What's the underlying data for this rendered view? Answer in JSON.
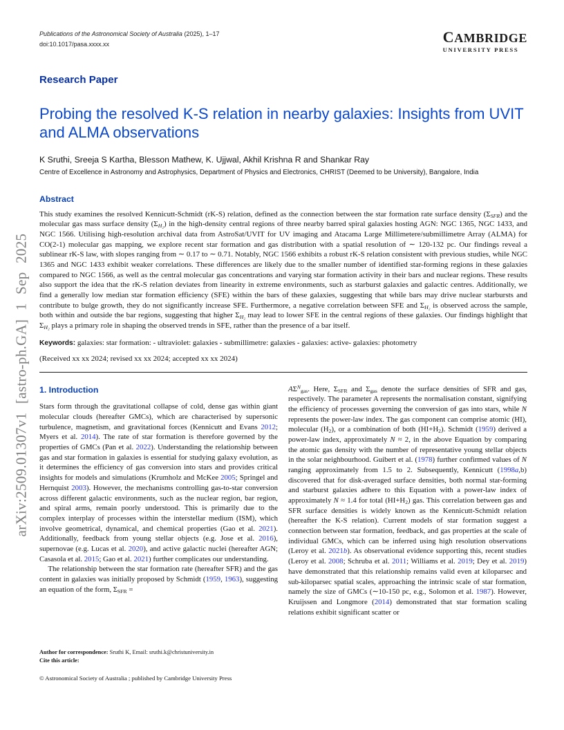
{
  "meta": {
    "journal_title": "Publications of the Astronomical Society of Australia",
    "journal_rest": " (2025), 1–17",
    "doi_line": "doi:10.1017/pasa.xxxx.xx",
    "arxiv_watermark": "arXiv:2509.01307v1 [astro-ph.GA] 1 Sep 2025"
  },
  "publisher": {
    "name": "CAMBRIDGE",
    "subname": "UNIVERSITY PRESS"
  },
  "article": {
    "type_label": "Research Paper",
    "title": "Probing the resolved K-S relation in nearby galaxies: Insights from UVIT and ALMA observations",
    "authors": "K Sruthi, Sreeja S Kartha, Blesson Mathew, K. Ujjwal, Akhil Krishna R and Shankar Ray",
    "affiliation": "Centre of Excellence in Astronomy and Astrophysics, Department of Physics and Electronics, CHRIST (Deemed to be University), Bangalore, India"
  },
  "abstract": {
    "heading": "Abstract",
    "segments": [
      {
        "t": "This study examines the resolved Kennicutt-Schmidt (rK-S) relation, defined as the connection between the star formation rate surface density (Σ"
      },
      {
        "t": "SFR",
        "c": "sub i"
      },
      {
        "t": ") and the molecular gas mass surface density (Σ"
      },
      {
        "t": "H₂",
        "c": "sub i"
      },
      {
        "t": ") in the high-density central regions of three nearby barred spiral galaxies hosting AGN: NGC 1365, NGC 1433, and NGC 1566. Utilising high-resolution archival data from AstroSat/UVIT for UV imaging and Atacama Large Millimetere/submillimetre Array (ALMA) for CO(2-1) molecular gas mapping, we explore recent star formation and gas distribution with a spatial resolution of ∼ 120-132 pc. Our findings reveal a sublinear rK-S law, with slopes ranging from ∼ 0.17 to ∼ 0.71. Notably, NGC 1566 exhibits a robust rK-S relation consistent with previous studies, while NGC 1365 and NGC 1433 exhibit weaker correlations. These differences are likely due to the smaller number of identified star-forming regions in these galaxies compared to NGC 1566, as well as the central molecular gas concentrations and varying star formation activity in their bars and nuclear regions. These results also support the idea that the rK-S relation deviates from linearity in extreme environments, such as starburst galaxies and galactic centres. Additionally, we find a generally low median star formation efficiency (SFE) within the bars of these galaxies, suggesting that while bars may drive nuclear starbursts and contribute to bulge growth, they do not significantly increase SFE. Furthermore, a negative correlation between SFE and Σ"
      },
      {
        "t": "H₂",
        "c": "sub i"
      },
      {
        "t": " is observed across the sample, both within and outside the bar regions, suggesting that higher Σ"
      },
      {
        "t": "H₂",
        "c": "sub i"
      },
      {
        "t": " may lead to lower SFE in the central regions of these galaxies. Our findings highlight that Σ"
      },
      {
        "t": "H₂",
        "c": "sub i"
      },
      {
        "t": " plays a primary role in shaping the observed trends in SFE, rather than the presence of a bar itself."
      }
    ]
  },
  "keywords": {
    "label": "Keywords:",
    "text": " galaxies: star formation: - ultraviolet: galaxies - submillimetre: galaxies - galaxies: active- galaxies: photometry"
  },
  "dates": {
    "received_line": "(Received xx xx 2024; revised xx xx 2024; accepted xx xx 2024)"
  },
  "sections": {
    "introduction": {
      "heading": "1. Introduction",
      "para1": [
        {
          "t": "Stars form through the gravitational collapse of cold, dense gas within giant molecular clouds (hereafter GMCs), which are characterised by supersonic turbulence, magnetism, and gravitational forces (Kennicutt and Evans "
        },
        {
          "t": "2012",
          "c": "cite"
        },
        {
          "t": "; Myers et al. "
        },
        {
          "t": "2014",
          "c": "cite"
        },
        {
          "t": "). The rate of star formation is therefore governed by the properties of GMCs (Pan et al. "
        },
        {
          "t": "2022",
          "c": "cite"
        },
        {
          "t": "). Understanding the relationship between gas and star formation in galaxies is essential for studying galaxy evolution, as it determines the efficiency of gas conversion into stars and provides critical insights for models and simulations (Krumholz and McKee "
        },
        {
          "t": "2005",
          "c": "cite"
        },
        {
          "t": "; Springel and Hernquist "
        },
        {
          "t": "2003",
          "c": "cite"
        },
        {
          "t": "). However, the mechanisms controlling gas-to-star conversion across different galactic environments, such as the nuclear region, bar region, and spiral arms, remain poorly understood. This is primarily due to the complex interplay of processes within the interstellar medium (ISM), which involve geometrical, dynamical, and chemical properties (Gao et al. "
        },
        {
          "t": "2021",
          "c": "cite"
        },
        {
          "t": "). Additionally, feedback from young stellar objects (e.g. Jose et al. "
        },
        {
          "t": "2016",
          "c": "cite"
        },
        {
          "t": "), supernovae (e.g. Lucas et al. "
        },
        {
          "t": "2020",
          "c": "cite"
        },
        {
          "t": "), and active galactic nuclei (hereafter AGN; Casasola et al. "
        },
        {
          "t": "2015",
          "c": "cite"
        },
        {
          "t": "; Gao et al. "
        },
        {
          "t": "2021",
          "c": "cite"
        },
        {
          "t": ") further complicates our understanding."
        }
      ],
      "para2": [
        {
          "t": "The relationship between the star formation rate (hereafter SFR) and the gas content in galaxies was initially proposed by Schmidt ("
        },
        {
          "t": "1959",
          "c": "cite"
        },
        {
          "t": ", "
        },
        {
          "t": "1963",
          "c": "cite"
        },
        {
          "t": "), suggesting an equation of the form, Σ"
        },
        {
          "t": "SFR",
          "c": "sub"
        },
        {
          "t": " ="
        }
      ],
      "para3": [
        {
          "t": "A",
          "c": "i"
        },
        {
          "t": "Σ"
        },
        {
          "t": "N",
          "c": "sup i"
        },
        {
          "t": "gas",
          "c": "sub"
        },
        {
          "t": ". Here, Σ"
        },
        {
          "t": "SFR",
          "c": "sub"
        },
        {
          "t": " and Σ"
        },
        {
          "t": "gas",
          "c": "sub"
        },
        {
          "t": " denote the surface densities of SFR and gas, respectively. The parameter A represents the normalisation constant, signifying the efficiency of processes governing the conversion of gas into stars, while "
        },
        {
          "t": "N",
          "c": "i"
        },
        {
          "t": " represents the power-law index. The gas component can comprise atomic (HI), molecular (H"
        },
        {
          "t": "2",
          "c": "sub"
        },
        {
          "t": "), or a combination of both (HI+H"
        },
        {
          "t": "2",
          "c": "sub"
        },
        {
          "t": "). Schmidt ("
        },
        {
          "t": "1959",
          "c": "cite"
        },
        {
          "t": ") derived a power-law index, approximately "
        },
        {
          "t": "N",
          "c": "i"
        },
        {
          "t": " ≈ 2, in the above Equation by comparing the atomic gas density with the number of representative young stellar objects in the solar neighbourhood. Guibert et al. ("
        },
        {
          "t": "1978",
          "c": "cite"
        },
        {
          "t": ") further confirmed values of "
        },
        {
          "t": "N",
          "c": "i"
        },
        {
          "t": " ranging approximately from 1.5 to 2. Subsequently, Kennicutt ("
        },
        {
          "t": "1998",
          "c": "cite"
        },
        {
          "t": "a",
          "c": "cite i"
        },
        {
          "t": ",b) discovered that for disk-averaged surface densities, both normal star-forming and starburst galaxies adhere to this Equation with a power-law index of approximately "
        },
        {
          "t": "N",
          "c": "i"
        },
        {
          "t": " ≈ 1.4 for total (HI+H"
        },
        {
          "t": "2",
          "c": "sub"
        },
        {
          "t": ") gas. This correlation between gas and SFR surface densities is widely known as the Kennicutt-Schmidt relation (hereafter the K-S relation). Current models of star formation suggest a connection between star formation, feedback, and gas properties at the scale of individual GMCs, which can be inferred using high resolution observations (Leroy et al. "
        },
        {
          "t": "2021",
          "c": "cite"
        },
        {
          "t": "b",
          "c": "cite i"
        },
        {
          "t": "). As observational evidence supporting this, recent studies (Leroy et al. "
        },
        {
          "t": "2008",
          "c": "cite"
        },
        {
          "t": "; Schruba et al. "
        },
        {
          "t": "2011",
          "c": "cite"
        },
        {
          "t": "; Williams et al. "
        },
        {
          "t": "2019",
          "c": "cite"
        },
        {
          "t": "; Dey et al. "
        },
        {
          "t": "2019",
          "c": "cite"
        },
        {
          "t": ") have demonstrated that this relationship remains valid even at kiloparsec and sub-kiloparsec spatial scales, approaching the intrinsic scale of star formation, namely the size of GMCs (∼10-150 pc, e.g., Solomon et al. "
        },
        {
          "t": "1987",
          "c": "cite"
        },
        {
          "t": "). However, Kruijssen and Longmore ("
        },
        {
          "t": "2014",
          "c": "cite"
        },
        {
          "t": ") demonstrated that star formation scaling relations exhibit significant scatter or"
        }
      ]
    }
  },
  "footnote": {
    "correspondence_label": "Author for correspondence:",
    "correspondence_text": " Sruthi K, Email: sruthi.k@christuniversity.in",
    "cite_label": "Cite this article:",
    "copyright": "© Astronomical Society of Australia ; published by Cambridge University Press"
  },
  "colors": {
    "title_blue": "#0b47cb",
    "heading_blue": "#0a3fb0",
    "link_blue": "#2531e3",
    "watermark_gray": "#7f7f7f"
  }
}
